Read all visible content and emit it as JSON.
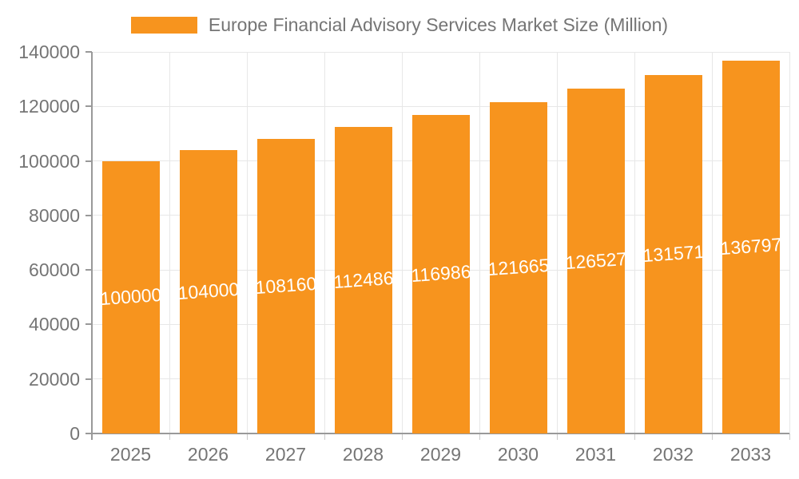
{
  "chart_data": {
    "type": "bar",
    "title": "Europe Financial Advisory Services Market Size (Million)",
    "categories": [
      "2025",
      "2026",
      "2027",
      "2028",
      "2029",
      "2030",
      "2031",
      "2032",
      "2033"
    ],
    "values": [
      100000,
      104000,
      108160,
      112486,
      116986,
      121665,
      126527,
      131571,
      136797
    ],
    "bar_labels": [
      "100000",
      "104000",
      "108160",
      "112486",
      "116986",
      "121665",
      "126527",
      "131571",
      "136797"
    ],
    "xlabel": "",
    "ylabel": "",
    "ylim": [
      0,
      140000
    ],
    "yticks": [
      0,
      20000,
      40000,
      60000,
      80000,
      100000,
      120000,
      140000
    ],
    "ytick_labels": [
      "0",
      "20000",
      "40000",
      "60000",
      "80000",
      "100000",
      "120000",
      "140000"
    ],
    "grid": true,
    "legend_position": "top-center",
    "colors": {
      "bar": "#F7941E",
      "bar_label": "#FFFFFF",
      "axis_label": "#757575",
      "axis_line": "#999999",
      "gridline": "#E7E7E7",
      "legend_text": "#757575"
    }
  }
}
